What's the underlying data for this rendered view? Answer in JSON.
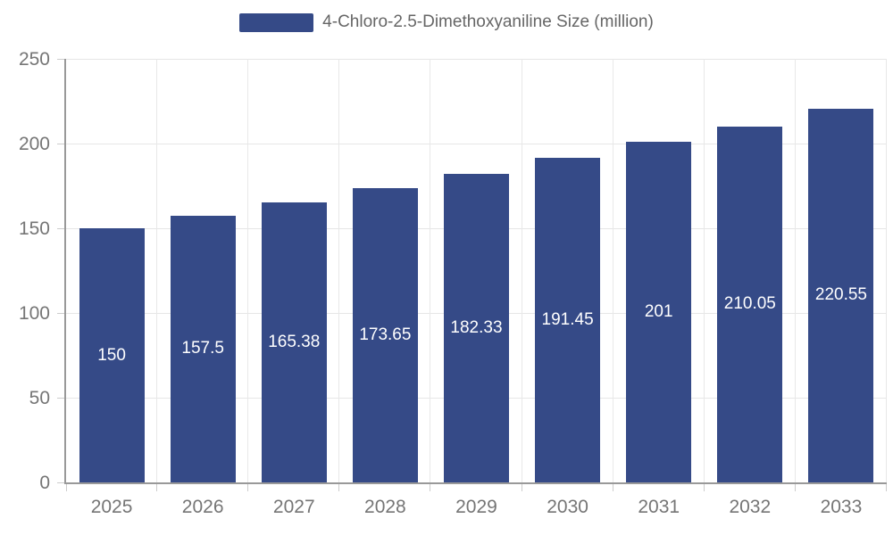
{
  "chart_data": {
    "type": "bar",
    "title": "",
    "legend": {
      "position": "top",
      "label": "4-Chloro-2.5-Dimethoxyaniline Size (million)"
    },
    "categories": [
      "2025",
      "2026",
      "2027",
      "2028",
      "2029",
      "2030",
      "2031",
      "2032",
      "2033"
    ],
    "series": [
      {
        "name": "4-Chloro-2.5-Dimethoxyaniline Size (million)",
        "values": [
          150,
          157.5,
          165.38,
          173.65,
          182.33,
          191.45,
          201,
          210.05,
          220.55
        ],
        "value_labels": [
          "150",
          "157.5",
          "165.38",
          "173.65",
          "182.33",
          "191.45",
          "201",
          "210.05",
          "220.55"
        ]
      }
    ],
    "xlabel": "",
    "ylabel": "",
    "ylim": [
      0,
      250
    ],
    "yticks": [
      0,
      50,
      100,
      150,
      200,
      250
    ],
    "grid": true,
    "colors": {
      "bar": "#354a87",
      "grid_h": "#e6e6e6",
      "grid_v": "#e8e8e8",
      "axis": "#999999",
      "tick": "#cccccc",
      "tick_label": "#757575",
      "legend_text": "#666666",
      "value_label": "#ffffff",
      "background": "#ffffff"
    }
  }
}
